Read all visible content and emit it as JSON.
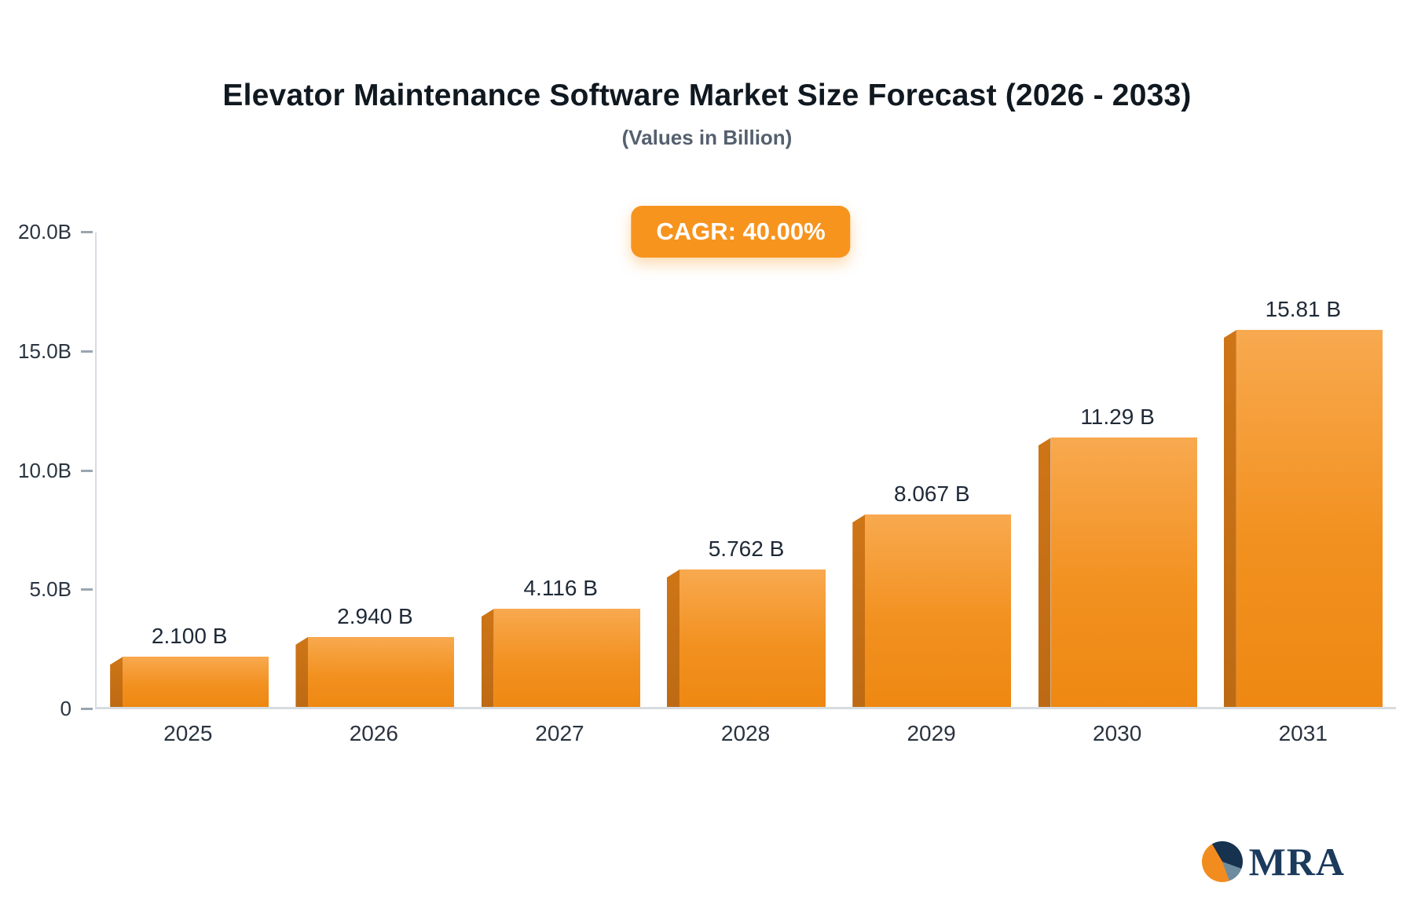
{
  "title": "Elevator Maintenance Software Market Size Forecast (2026 - 2033)",
  "subtitle": "(Values in Billion)",
  "badge": "CAGR: 40.00%",
  "logo": {
    "text": "MRA"
  },
  "colors": {
    "bar_main": "#F6921E",
    "bar_edge_dark": "#C2731B",
    "badge_orange": "#F7941E",
    "axis_gray": "#D7DCE1",
    "logo_navy": "#1B3A5C"
  },
  "chart_data": {
    "type": "bar",
    "title": "Elevator Maintenance Software Market Size Forecast (2026 - 2033)",
    "subtitle": "(Values in Billion)",
    "annotation": "CAGR: 40.00%",
    "categories": [
      "2025",
      "2026",
      "2027",
      "2028",
      "2029",
      "2030",
      "2031"
    ],
    "values": [
      2.1,
      2.94,
      4.116,
      5.762,
      8.067,
      11.29,
      15.81
    ],
    "bar_labels": [
      "2.100 B",
      "2.940 B",
      "4.116 B",
      "5.762 B",
      "8.067 B",
      "11.29 B",
      "15.81 B"
    ],
    "xlabel": "",
    "ylabel": "",
    "ylim": [
      0,
      20
    ],
    "yticks": [
      {
        "label": "20.0B",
        "value": 20
      },
      {
        "label": "15.0B",
        "value": 15
      },
      {
        "label": "10.0B",
        "value": 10
      },
      {
        "label": "5.0B",
        "value": 5
      },
      {
        "label": "0",
        "value": 0
      }
    ],
    "grid": false,
    "legend": false
  }
}
